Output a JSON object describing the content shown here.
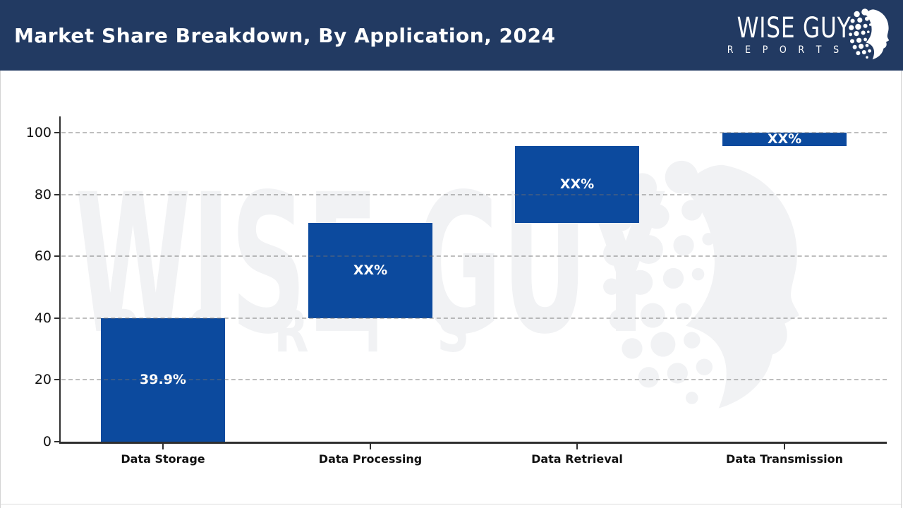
{
  "header": {
    "title": "Market Share Breakdown, By Application, 2024",
    "logo_line1": "WISE GUY",
    "logo_line2": "R E P O R T S"
  },
  "watermark": {
    "line1": "WISE GUY",
    "line2": "P O R T S",
    "face_icon": "dotted-head-profile"
  },
  "chart_data": {
    "type": "bar",
    "subtype": "waterfall",
    "title": "Market Share Breakdown, By Application, 2024",
    "categories": [
      "Data Storage",
      "Data Processing",
      "Data Retrieval",
      "Data Transmission"
    ],
    "segments": [
      {
        "category": "Data Storage",
        "start": 0,
        "end": 39.9,
        "value": 39.9,
        "label": "39.9%"
      },
      {
        "category": "Data Processing",
        "start": 39.9,
        "end": 70.8,
        "value": 30.9,
        "label": "XX%"
      },
      {
        "category": "Data Retrieval",
        "start": 70.8,
        "end": 95.7,
        "value": 24.9,
        "label": "XX%"
      },
      {
        "category": "Data Transmission",
        "start": 95.7,
        "end": 100,
        "value": 4.3,
        "label": "XX%"
      }
    ],
    "xlabel": "",
    "ylabel": "",
    "ylim": [
      0,
      105
    ],
    "yticks": [
      0,
      20,
      40,
      60,
      80,
      100
    ],
    "grid": "horizontal-dashed",
    "legend": "none",
    "bar_color": "#0c4a9e",
    "bar_label_color": "#ffffff"
  },
  "colors": {
    "header_bg": "#223a62",
    "bar": "#0c4a9e",
    "title_text": "#ffffff",
    "axis": "#2f2f2f",
    "grid": "#b4b4b4",
    "watermark": "#f1f2f4",
    "tick_label": "#111111"
  }
}
